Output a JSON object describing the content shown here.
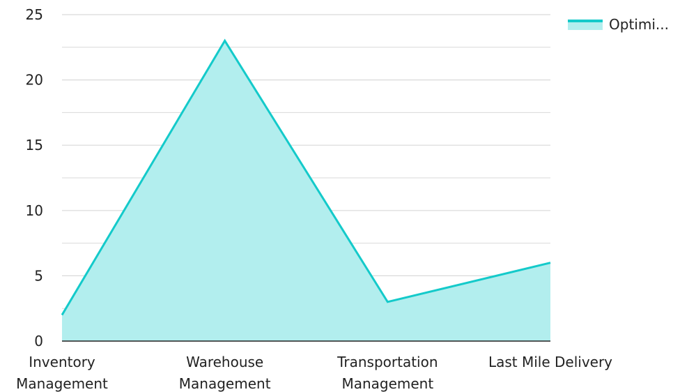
{
  "chart_data": {
    "type": "area",
    "categories": [
      [
        "Inventory",
        "Management"
      ],
      [
        "Warehouse",
        "Management"
      ],
      [
        "Transportation",
        "Management"
      ],
      [
        "Last Mile Delivery"
      ]
    ],
    "series": [
      {
        "name": "Optimi...",
        "values": [
          2,
          23,
          3,
          6
        ],
        "line_color": "#14CACA",
        "fill_color": "#B2EEEE"
      }
    ],
    "ylim": [
      0,
      25
    ],
    "y_ticks": [
      0,
      5,
      10,
      15,
      20,
      25
    ],
    "grid": true,
    "legend_position": "top-right",
    "axis_color": "#222222",
    "grid_color": "#D9D9D9"
  }
}
